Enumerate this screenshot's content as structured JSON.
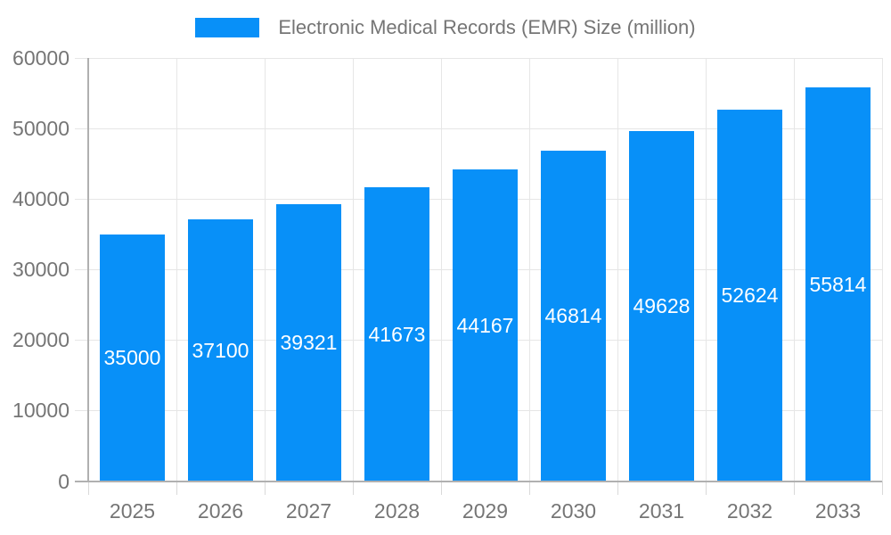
{
  "chart_data": {
    "type": "bar",
    "title": "",
    "legend_label": "Electronic Medical Records (EMR) Size (million)",
    "legend_position": "top",
    "categories": [
      "2025",
      "2026",
      "2027",
      "2028",
      "2029",
      "2030",
      "2031",
      "2032",
      "2033"
    ],
    "values": [
      35000,
      37100,
      39321,
      41673,
      44167,
      46814,
      49628,
      52624,
      55814
    ],
    "value_labels": [
      "35000",
      "37100",
      "39321",
      "41673",
      "44167",
      "46814",
      "49628",
      "52624",
      "55814"
    ],
    "xlabel": "",
    "ylabel": "",
    "ylim": [
      0,
      60000
    ],
    "yticks": [
      0,
      10000,
      20000,
      30000,
      40000,
      50000,
      60000
    ],
    "grid": true,
    "colors": {
      "bar": "#0890f8",
      "grid": "#e6e6e6",
      "axis": "#b0b0b0",
      "xtick_mark": "#d9d9d9",
      "tick_label_text": "#757575",
      "legend_text": "#757575",
      "data_label_text": "#ffffff",
      "background": "#ffffff"
    }
  }
}
